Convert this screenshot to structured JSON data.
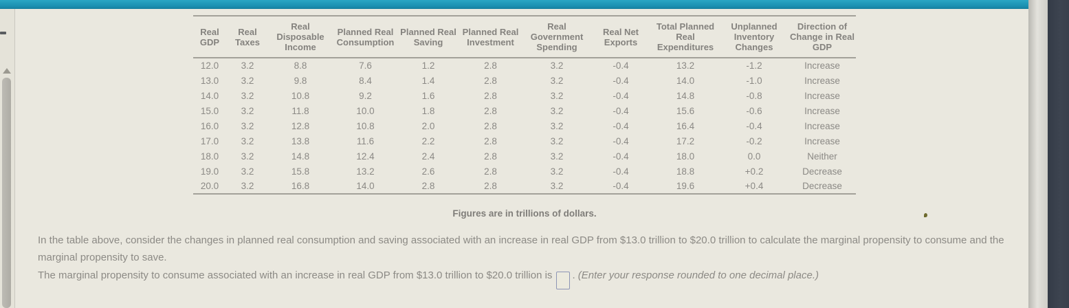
{
  "colors": {
    "accent_teal": "#1b8fb0",
    "background": "#eae8df",
    "dark_edge": "#3a414d",
    "table_text": "#8b8985"
  },
  "table": {
    "columns": [
      "Real GDP",
      "Real Taxes",
      "Real Disposable Income",
      "Planned Real Consumption",
      "Planned Real Saving",
      "Planned Real Investment",
      "Real Government Spending",
      "Real Net Exports",
      "Total Planned Real Expenditures",
      "Unplanned Inventory Changes",
      "Direction of Change in Real GDP"
    ],
    "rows": [
      [
        "12.0",
        "3.2",
        "8.8",
        "7.6",
        "1.2",
        "2.8",
        "3.2",
        "-0.4",
        "13.2",
        "-1.2",
        "Increase"
      ],
      [
        "13.0",
        "3.2",
        "9.8",
        "8.4",
        "1.4",
        "2.8",
        "3.2",
        "-0.4",
        "14.0",
        "-1.0",
        "Increase"
      ],
      [
        "14.0",
        "3.2",
        "10.8",
        "9.2",
        "1.6",
        "2.8",
        "3.2",
        "-0.4",
        "14.8",
        "-0.8",
        "Increase"
      ],
      [
        "15.0",
        "3.2",
        "11.8",
        "10.0",
        "1.8",
        "2.8",
        "3.2",
        "-0.4",
        "15.6",
        "-0.6",
        "Increase"
      ],
      [
        "16.0",
        "3.2",
        "12.8",
        "10.8",
        "2.0",
        "2.8",
        "3.2",
        "-0.4",
        "16.4",
        "-0.4",
        "Increase"
      ],
      [
        "17.0",
        "3.2",
        "13.8",
        "11.6",
        "2.2",
        "2.8",
        "3.2",
        "-0.4",
        "17.2",
        "-0.2",
        "Increase"
      ],
      [
        "18.0",
        "3.2",
        "14.8",
        "12.4",
        "2.4",
        "2.8",
        "3.2",
        "-0.4",
        "18.0",
        "0.0",
        "Neither"
      ],
      [
        "19.0",
        "3.2",
        "15.8",
        "13.2",
        "2.6",
        "2.8",
        "3.2",
        "-0.4",
        "18.8",
        "+0.2",
        "Decrease"
      ],
      [
        "20.0",
        "3.2",
        "16.8",
        "14.0",
        "2.8",
        "2.8",
        "3.2",
        "-0.4",
        "19.6",
        "+0.4",
        "Decrease"
      ]
    ],
    "caption": "Figures are in trillions of dollars."
  },
  "body": {
    "paragraph": "In the table above, consider the changes in planned real consumption and saving associated with an increase in real GDP from $13.0 trillion to $20.0 trillion to calculate the marginal propensity to consume and the marginal propensity to save.",
    "question_prefix": "The marginal propensity to consume associated with an increase in real GDP from $13.0 trillion to $20.0 trillion is",
    "answer_value": "",
    "question_period": ".",
    "question_hint": "(Enter your response rounded to one decimal place.)"
  }
}
